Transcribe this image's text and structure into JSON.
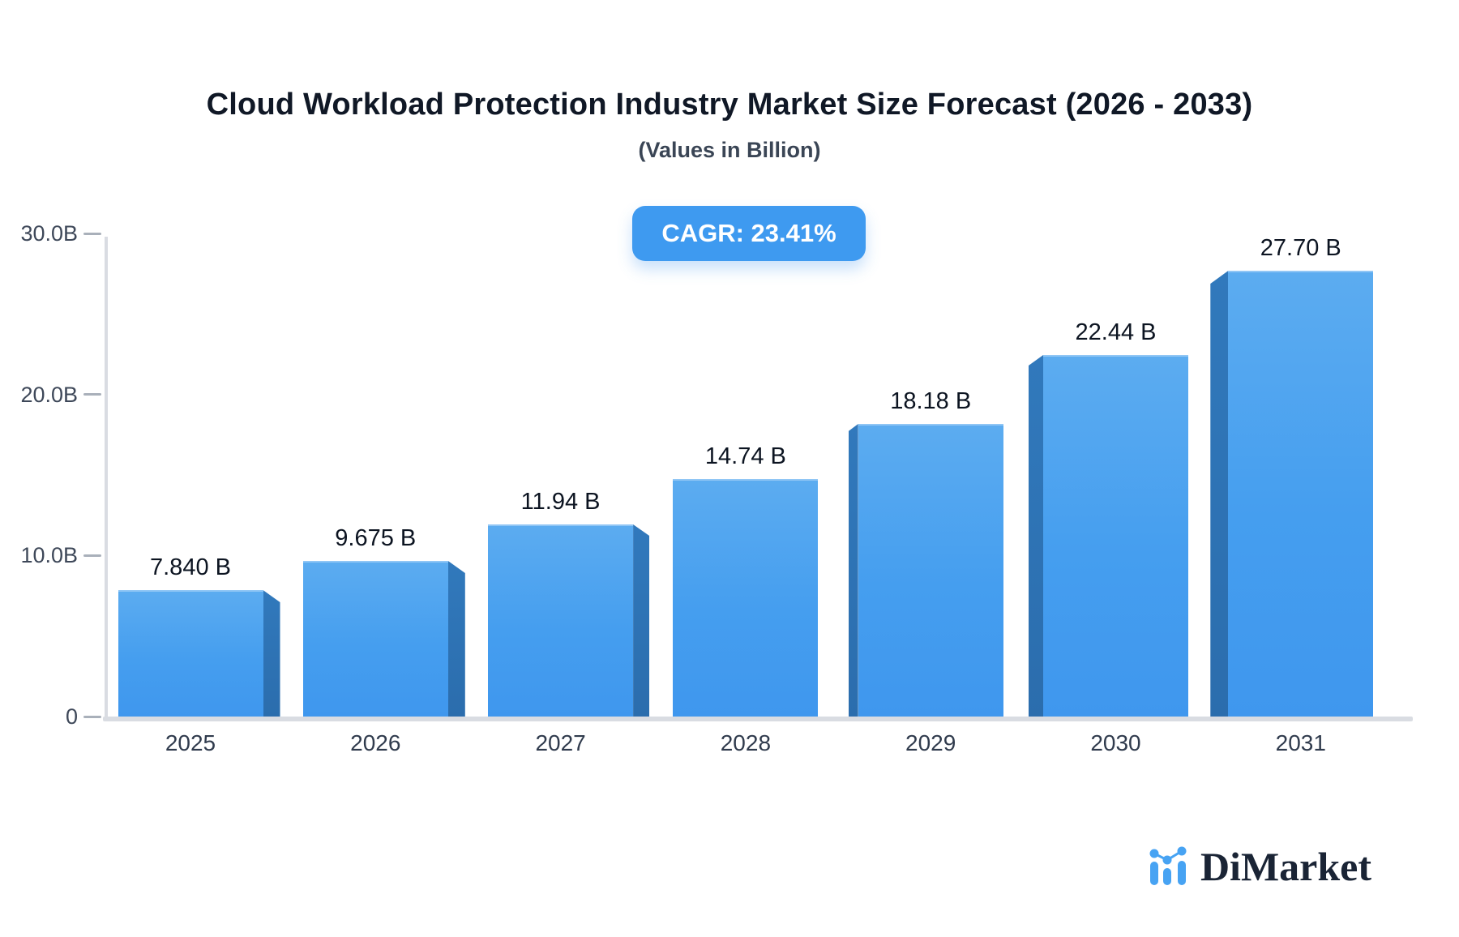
{
  "title": "Cloud Workload Protection Industry Market Size Forecast (2026 - 2033)",
  "subtitle": "(Values in Billion)",
  "badge_label": "CAGR: 23.41%",
  "brand": {
    "name": "DiMarket",
    "icon": "bar-chart-icon"
  },
  "colors": {
    "bar_top": "#5cacf0",
    "bar_bottom": "#3f97ee",
    "bar_side": "#2e74b5",
    "badge_bg": "#3e9af0",
    "axis_gray": "#d9dce2",
    "brand_navy": "#1a2435",
    "brand_blue": "#47a3f3"
  },
  "chart_data": {
    "type": "bar",
    "title": "Cloud Workload Protection Industry Market Size Forecast (2026 - 2033)",
    "subtitle": "(Values in Billion)",
    "categories": [
      "2025",
      "2026",
      "2027",
      "2028",
      "2029",
      "2030",
      "2031"
    ],
    "values": [
      7.84,
      9.675,
      11.94,
      14.74,
      18.18,
      22.44,
      27.7
    ],
    "value_labels": [
      "7.840 B",
      "9.675 B",
      "11.94 B",
      "14.74 B",
      "18.18 B",
      "22.44 B",
      "27.70 B"
    ],
    "cagr": "23.41%",
    "xlabel": "",
    "ylabel": "",
    "ylim": [
      0,
      30
    ],
    "yticks": [
      {
        "value": 30,
        "label": "30.0B"
      },
      {
        "value": 20,
        "label": "20.0B"
      },
      {
        "value": 10,
        "label": "10.0B"
      },
      {
        "value": 0,
        "label": "0"
      }
    ],
    "grid": false,
    "legend": false,
    "style": "3d-perspective-bars"
  }
}
